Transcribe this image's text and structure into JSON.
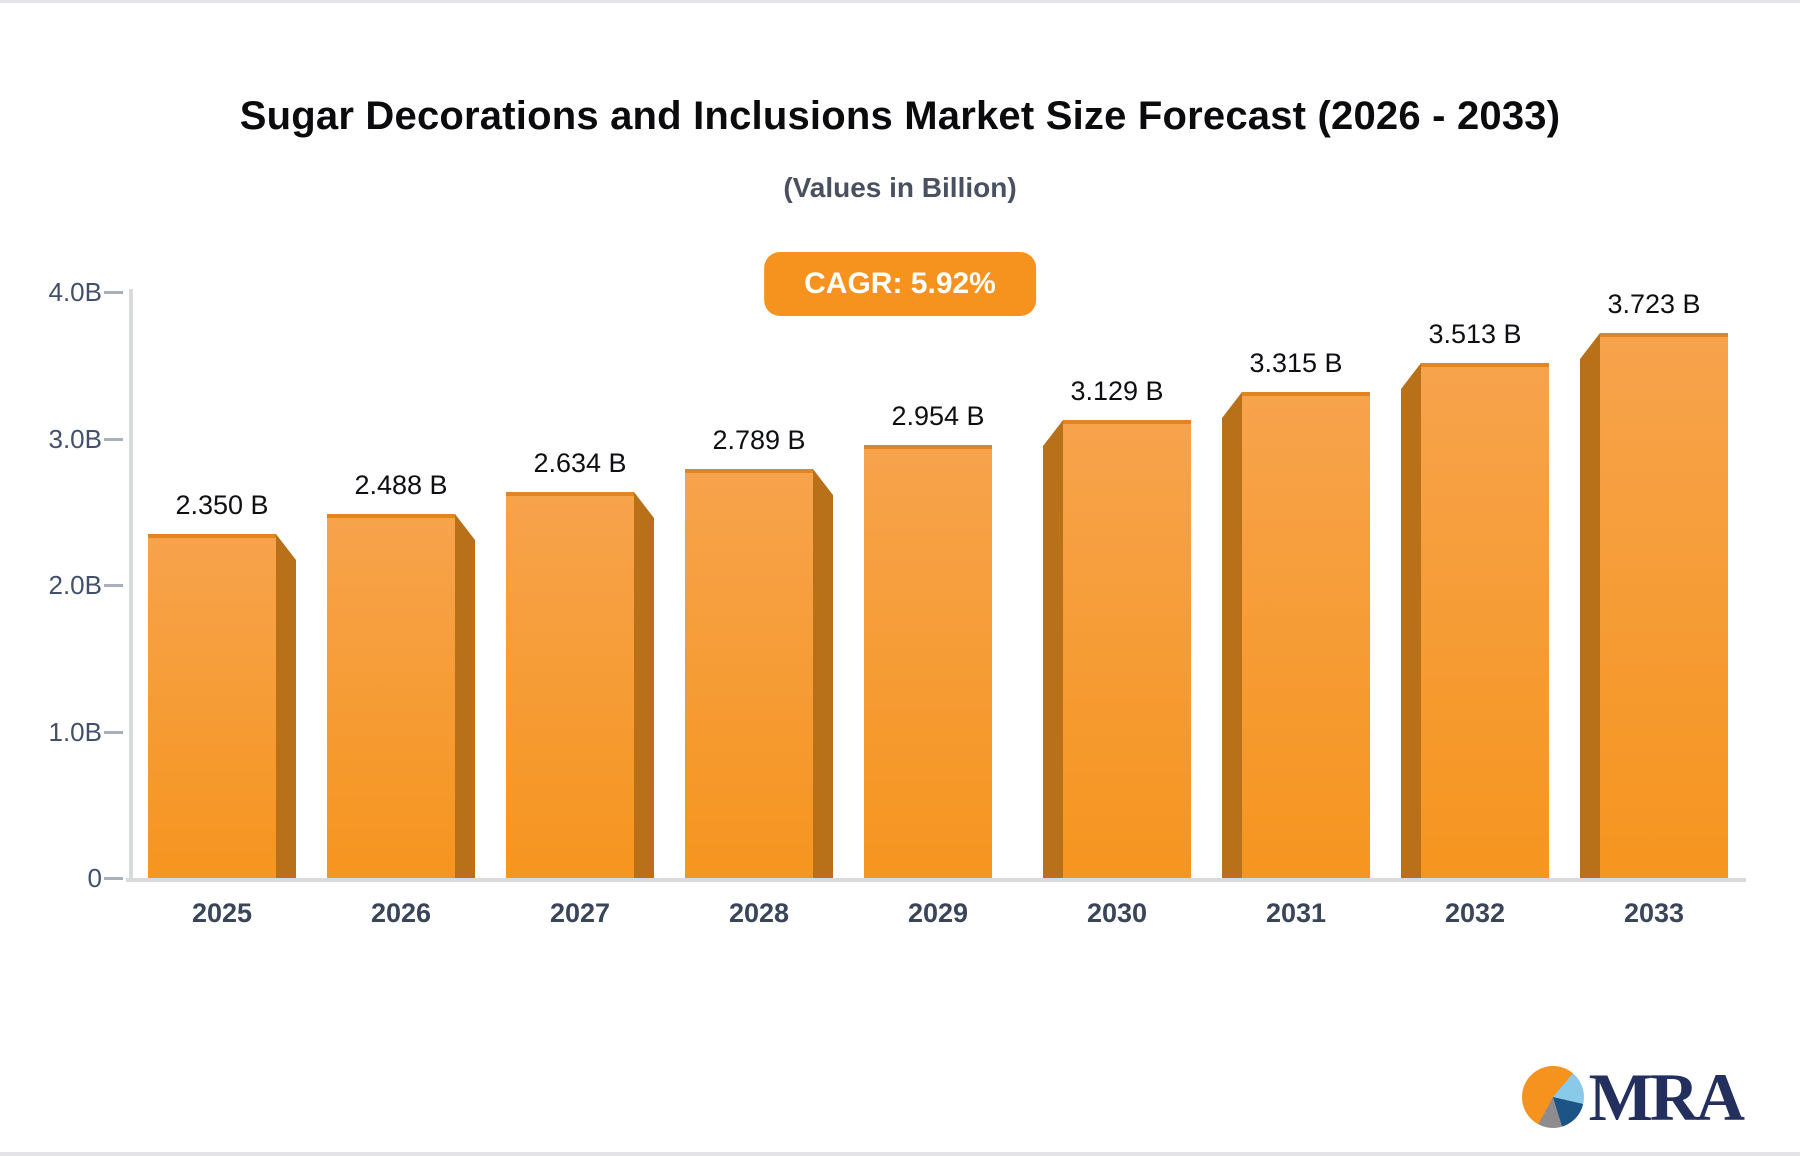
{
  "header": {
    "title": "Sugar Decorations and Inclusions Market Size Forecast (2026 - 2033)",
    "subtitle": "(Values in Billion)"
  },
  "badge": {
    "label": "CAGR: 5.92%"
  },
  "chart_data": {
    "type": "bar",
    "title": "Sugar Decorations and Inclusions Market Size Forecast (2026 - 2033)",
    "subtitle": "(Values in Billion)",
    "cagr": "5.92%",
    "categories": [
      "2025",
      "2026",
      "2027",
      "2028",
      "2029",
      "2030",
      "2031",
      "2032",
      "2033"
    ],
    "values": [
      2.35,
      2.488,
      2.634,
      2.789,
      2.954,
      3.129,
      3.315,
      3.513,
      3.723
    ],
    "value_labels": [
      "2.350 B",
      "2.488 B",
      "2.634 B",
      "2.789 B",
      "2.954 B",
      "3.129 B",
      "3.315 B",
      "3.513 B",
      "3.723 B"
    ],
    "unit": "Billion",
    "ylim": [
      0,
      4
    ],
    "y_ticks": [
      {
        "label": "4.0B",
        "value": 4.0
      },
      {
        "label": "3.0B",
        "value": 3.0
      },
      {
        "label": "2.0B",
        "value": 2.0
      },
      {
        "label": "1.0B",
        "value": 1.0
      },
      {
        "label": "0",
        "value": 0.0
      }
    ],
    "grid": "off",
    "legend": "none"
  },
  "logo": {
    "text": "MRA"
  },
  "colors": {
    "accent_orange": "#f6921e",
    "bar_gradient_top": "#f7a34c",
    "bar_gradient_bottom": "#f6951f",
    "bar_top_edge": "#e18421",
    "bar_side_shade": "#b97119",
    "axis_line": "#d9dade",
    "axis_text": "#43506b",
    "x_label_text": "#3b4559",
    "value_text": "#0d0f13",
    "title_text": "#0b0b0e",
    "subtitle_text": "#49505f",
    "badge_text": "#ffffff",
    "logo_navy": "#232f5d",
    "logo_lightblue": "#8bc9e8",
    "logo_steelblue": "#1c5486",
    "logo_gray": "#8f8c90"
  }
}
